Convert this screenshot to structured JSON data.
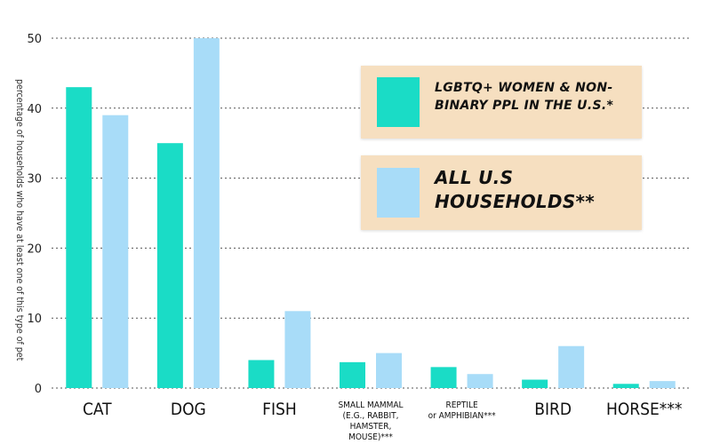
{
  "chart_data": {
    "type": "bar",
    "ylabel": "percentage of households who have at least one of this type of pet",
    "xlabel": "",
    "ylim": [
      0,
      50
    ],
    "yticks": [
      0,
      10,
      20,
      30,
      40,
      50
    ],
    "grid": true,
    "categories": [
      [
        "CAT"
      ],
      [
        "DOG"
      ],
      [
        "FISH"
      ],
      [
        "SMALL MAMMAL",
        "(E.G., RABBIT,",
        "HAMSTER,",
        "MOUSE)***"
      ],
      [
        "REPTILE",
        "or AMPHIBIAN***"
      ],
      [
        "BIRD"
      ],
      [
        "HORSE***"
      ]
    ],
    "series": [
      {
        "name": "LGBTQ+ WOMEN & NON-BINARY PPL IN THE U.S.*",
        "color": "#1adcc6",
        "values": [
          43,
          35,
          4,
          3.7,
          3,
          1.2,
          0.6
        ]
      },
      {
        "name": "ALL U.S HOUSEHOLDS**",
        "color": "#a8dcf8",
        "values": [
          39,
          50,
          11,
          5,
          2,
          6,
          1
        ]
      }
    ],
    "legend_position": "top-right"
  }
}
